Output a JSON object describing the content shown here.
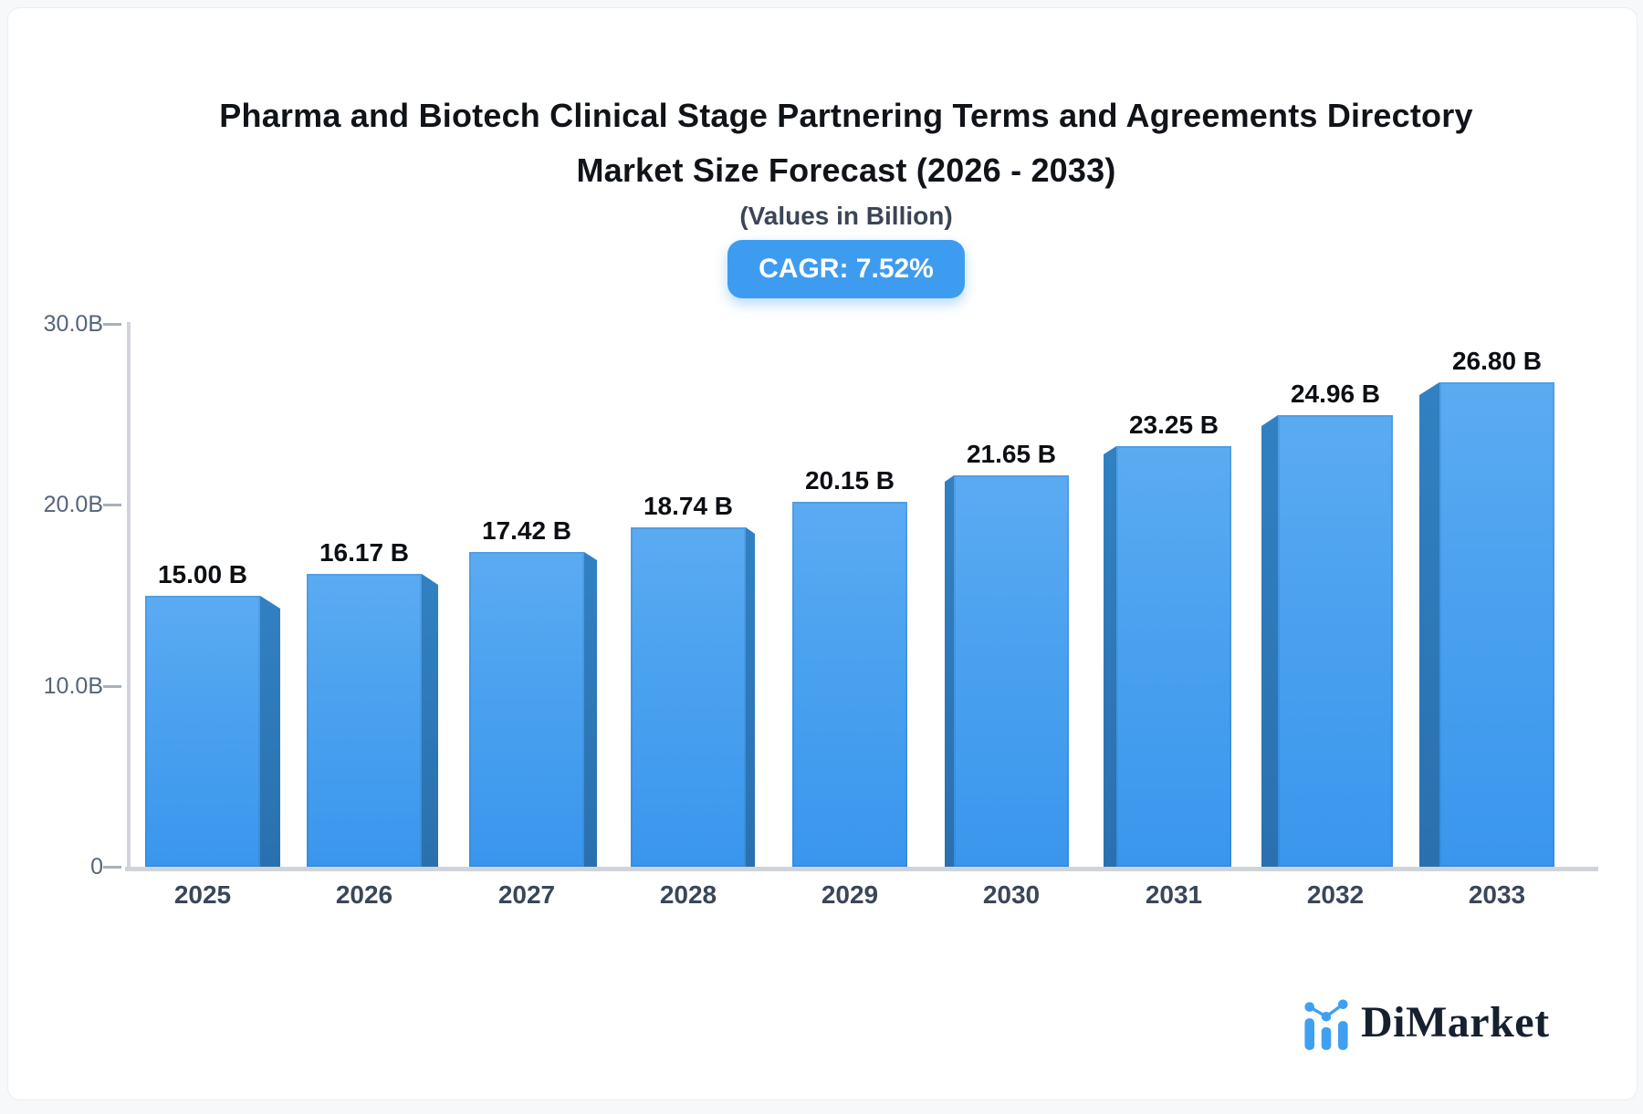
{
  "header": {
    "title_line1": "Pharma and Biotech Clinical Stage Partnering Terms and Agreements Directory",
    "title_line2": "Market Size Forecast (2026 - 2033)",
    "subtitle": "(Values in Billion)",
    "cagr_badge": "CAGR: 7.52%"
  },
  "chart_data": {
    "type": "bar",
    "title": "Pharma and Biotech Clinical Stage Partnering Terms and Agreements Directory Market Size Forecast (2026 - 2033)",
    "subtitle": "(Values in Billion)",
    "cagr": "7.52%",
    "categories": [
      "2025",
      "2026",
      "2027",
      "2028",
      "2029",
      "2030",
      "2031",
      "2032",
      "2033"
    ],
    "values": [
      15.0,
      16.17,
      17.42,
      18.74,
      20.15,
      21.65,
      23.25,
      24.96,
      26.8
    ],
    "value_labels": [
      "15.00 B",
      "16.17 B",
      "17.42 B",
      "18.74 B",
      "20.15 B",
      "21.65 B",
      "23.25 B",
      "24.96 B",
      "26.80 B"
    ],
    "xlabel": "",
    "ylabel": "",
    "ylim": [
      0,
      30
    ],
    "yticks": [
      {
        "value": 0,
        "label": "0"
      },
      {
        "value": 10,
        "label": "10.0B"
      },
      {
        "value": 20,
        "label": "20.0B"
      },
      {
        "value": 30,
        "label": "30.0B"
      }
    ],
    "grid": false,
    "legend": null
  },
  "colors": {
    "accent_blue": "#3e9cf0",
    "bar_face_top": "#5babf2",
    "bar_face_bottom": "#3a96ed",
    "bar_side_dark": "#2d77b5",
    "axis_line": "#d0d4da",
    "tick_text": "#55657a",
    "year_text": "#3a4659",
    "title_text": "#101419",
    "subtitle_text": "#3b4556",
    "logo_navy": "#16202f",
    "logo_blue": "#3fa0f0",
    "page_bg": "#f7f8fa",
    "card_bg": "#ffffff"
  },
  "logo": {
    "text": "DiMarket",
    "icon": "bar-chart-logo-icon"
  }
}
